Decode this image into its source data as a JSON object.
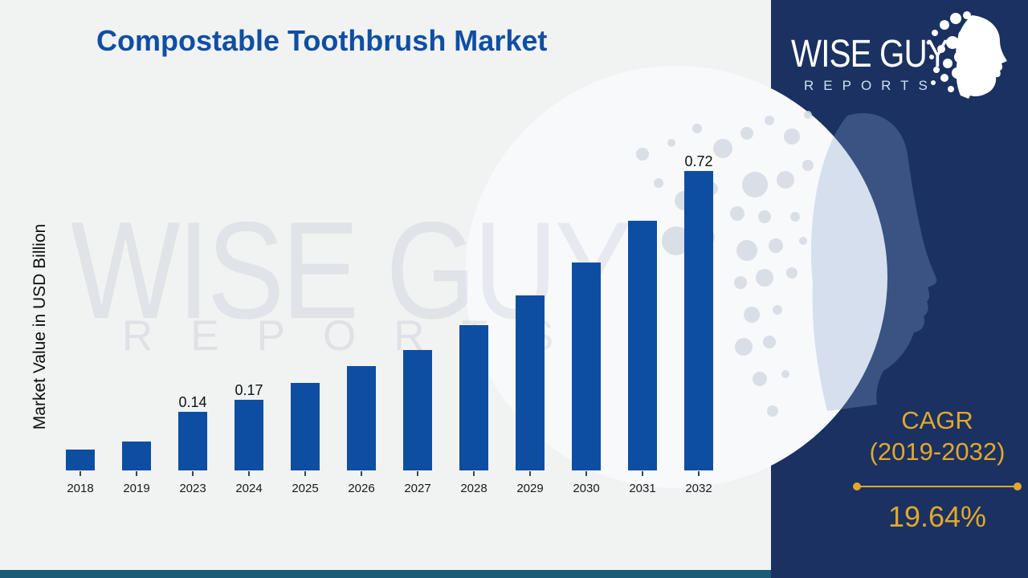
{
  "title": "Compostable Toothbrush Market",
  "chart_data": {
    "type": "bar",
    "title": "Compostable Toothbrush Market",
    "xlabel": "",
    "ylabel": "Market Value in USD Billion",
    "ylim": [
      0,
      0.78
    ],
    "grid": false,
    "legend": null,
    "bar_color": "#0d4ea3",
    "categories": [
      "2018",
      "2019",
      "2023",
      "2024",
      "2025",
      "2026",
      "2027",
      "2028",
      "2029",
      "2030",
      "2031",
      "2032"
    ],
    "values": [
      0.05,
      0.07,
      0.14,
      0.17,
      0.21,
      0.25,
      0.29,
      0.35,
      0.42,
      0.5,
      0.6,
      0.72
    ],
    "data_labels": [
      "",
      "",
      "0.14",
      "0.17",
      "",
      "",
      "",
      "",
      "",
      "",
      "",
      "0.72"
    ]
  },
  "watermark": {
    "wordmark": "WISE GUY",
    "reports": "REPORTS"
  },
  "brand": {
    "wordmark": "WISE GUY",
    "reports": "REPORTS",
    "panel_color": "#1a3161",
    "accent_gold": "#e2a82b"
  },
  "cagr": {
    "label": "CAGR",
    "range": "(2019-2032)",
    "value": "19.64%"
  }
}
